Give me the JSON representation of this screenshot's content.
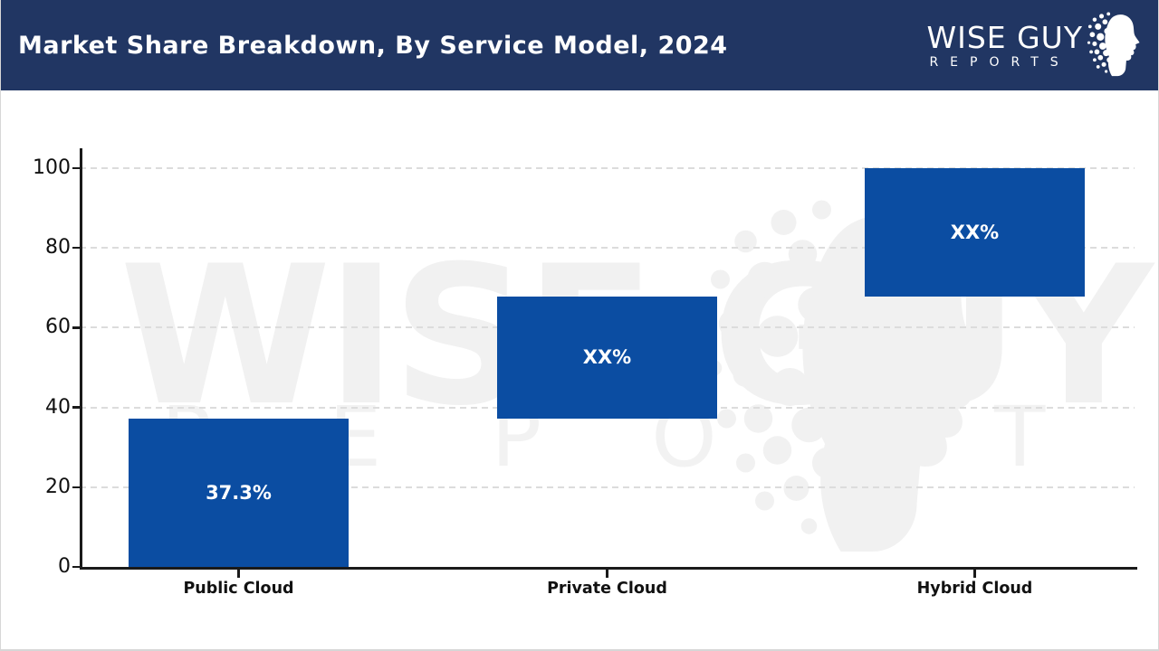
{
  "header": {
    "title": "Market Share Breakdown, By Service Model, 2024",
    "bg_color": "#213663",
    "logo": {
      "line1": "WISE GUY",
      "line2": "REPORTS",
      "face_icon": "wise-guy-face-icon",
      "color": "#ffffff"
    }
  },
  "watermark": {
    "line1": "WISE GUY",
    "line2": "R E P O R T S",
    "color": "#f1f1f1"
  },
  "chart_data": {
    "type": "bar",
    "subtype": "floating-waterfall",
    "title": "Market Share Breakdown, By Service Model, 2024",
    "categories": [
      "Public Cloud",
      "Private Cloud",
      "Hybrid Cloud"
    ],
    "segments": [
      {
        "category": "Public Cloud",
        "from": 0,
        "to": 37.3,
        "label": "37.3%"
      },
      {
        "category": "Private Cloud",
        "from": 37.3,
        "to": 67.7,
        "label": "XX%"
      },
      {
        "category": "Hybrid Cloud",
        "from": 67.7,
        "to": 100,
        "label": "XX%"
      }
    ],
    "ylim": [
      0,
      100
    ],
    "yticks": [
      0,
      20,
      40,
      60,
      80,
      100
    ],
    "xlabel": "",
    "ylabel": "",
    "grid": "horizontal-dashed",
    "legend": "none",
    "bar_color": "#0b4da2",
    "bar_label_color": "#ffffff",
    "axis_color": "#1a1a1a",
    "gridline_color": "#dcdcdc"
  }
}
